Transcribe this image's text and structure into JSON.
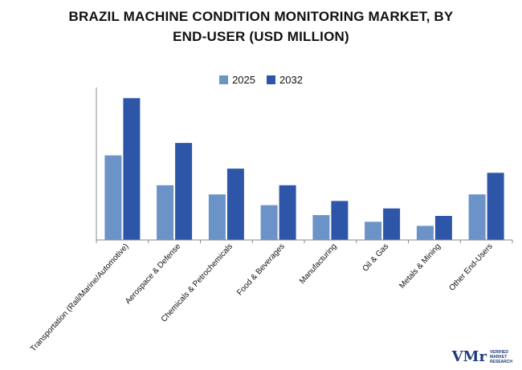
{
  "chart_data": {
    "type": "bar",
    "title_lines": [
      "BRAZIL MACHINE CONDITION MONITORING MARKET, BY",
      "END-USER (USD MILLION)"
    ],
    "categories": [
      "Transportation (Rail/Marine/Automotive)",
      "Aerospace & Defense",
      "Chemicals & Petrochemicals",
      "Food & Beverages",
      "Manufacturing",
      "Oil & Gas",
      "Metals & Mining",
      "Other End-Users"
    ],
    "series": [
      {
        "name": "2025",
        "color": "#6b93c8",
        "values": [
          102,
          66,
          55,
          42,
          30,
          22,
          17,
          55
        ]
      },
      {
        "name": "2032",
        "color": "#2e56a8",
        "values": [
          171,
          117,
          86,
          66,
          47,
          38,
          29,
          81
        ]
      }
    ],
    "ylim": [
      0,
      180
    ],
    "grid": false,
    "legend_position": "top-center"
  },
  "logo": {
    "mark": "VMr",
    "lines": [
      "VERIFIED",
      "MARKET",
      "RESEARCH"
    ]
  }
}
